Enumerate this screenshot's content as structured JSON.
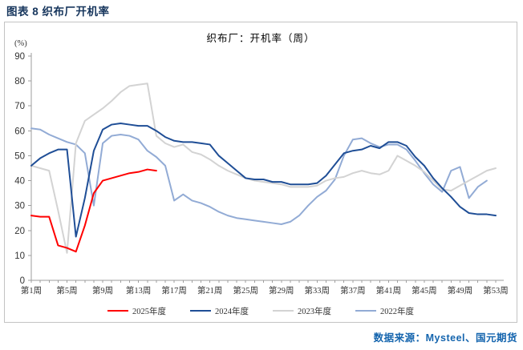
{
  "page": {
    "title": "图表 8 织布厂开机率",
    "source": "数据来源：Mysteel、国元期货"
  },
  "colors": {
    "figure_title": "#17365D",
    "source_text": "#1565AE",
    "axis": "#9e9e9e",
    "tick_text": "#333333",
    "panel_border": "#c3c3c3"
  },
  "chart_data": {
    "type": "line",
    "title": "织布厂：开机率（周）",
    "unit_label": "(%)",
    "grid": false,
    "legend_position": "bottom",
    "x_axis": {
      "min_week": 1,
      "max_week": 53,
      "tick_weeks": [
        1,
        5,
        9,
        13,
        17,
        21,
        25,
        29,
        33,
        37,
        41,
        45,
        49,
        53
      ],
      "tick_labels": [
        "第1周",
        "第5周",
        "第9周",
        "第13周",
        "第17周",
        "第21周",
        "第25周",
        "第29周",
        "第33周",
        "第37周",
        "第41周",
        "第45周",
        "第49周",
        "第53周"
      ]
    },
    "y_axis": {
      "min": 0,
      "max": 90,
      "tick_step": 10
    },
    "series": [
      {
        "name": "2025年度",
        "color": "#FF0000",
        "start_week": 1,
        "values": [
          26,
          25.5,
          25.5,
          14,
          13,
          11.5,
          22,
          35,
          40,
          41,
          42,
          43,
          43.5,
          44.5,
          44
        ]
      },
      {
        "name": "2024年度",
        "color": "#1F4E96",
        "start_week": 1,
        "values": [
          46,
          49,
          51,
          52.5,
          52.5,
          17.5,
          33,
          52,
          60.5,
          62.5,
          63,
          62.5,
          62,
          62,
          60,
          57.5,
          56,
          55.5,
          55.5,
          55,
          54.5,
          50,
          47,
          44,
          41,
          40.5,
          40.5,
          39.5,
          39.5,
          38.5,
          38.5,
          38.5,
          39,
          42,
          46.5,
          51,
          52,
          52.5,
          54,
          53,
          55.5,
          55.5,
          54,
          49.5,
          46,
          41,
          37,
          33.5,
          29.5,
          27,
          26.5,
          26.5,
          26
        ]
      },
      {
        "name": "2023年度",
        "color": "#D3D3D3",
        "start_week": 1,
        "values": [
          46,
          45,
          44,
          28,
          11,
          55,
          64,
          66.5,
          69,
          72,
          75.5,
          78,
          78.5,
          79,
          58,
          55,
          53.5,
          54.5,
          51.5,
          50.5,
          48.5,
          46,
          44,
          42.5,
          41,
          40,
          39.5,
          39,
          38.5,
          37.5,
          37.5,
          37.5,
          38,
          40,
          41,
          41.5,
          43,
          44,
          43,
          42.5,
          44,
          50,
          48,
          46,
          43.5,
          40,
          36.5,
          36,
          38,
          40,
          42,
          44,
          45
        ]
      },
      {
        "name": "2022年度",
        "color": "#92ABD5",
        "start_week": 1,
        "values": [
          61,
          60.5,
          58.5,
          57,
          55.5,
          54.5,
          51,
          30,
          55,
          58,
          58.5,
          58,
          56.5,
          52,
          49.5,
          46,
          32,
          34.5,
          32,
          31,
          29.5,
          27.5,
          26,
          25,
          24.5,
          24,
          23.5,
          23,
          22.5,
          23.5,
          26,
          30,
          33.5,
          36,
          40.5,
          50,
          56.5,
          57,
          55,
          53.5,
          54.5,
          54.5,
          52.5,
          48,
          43,
          38.5,
          35.5,
          44,
          45.5,
          33,
          37.5,
          40
        ]
      }
    ]
  }
}
